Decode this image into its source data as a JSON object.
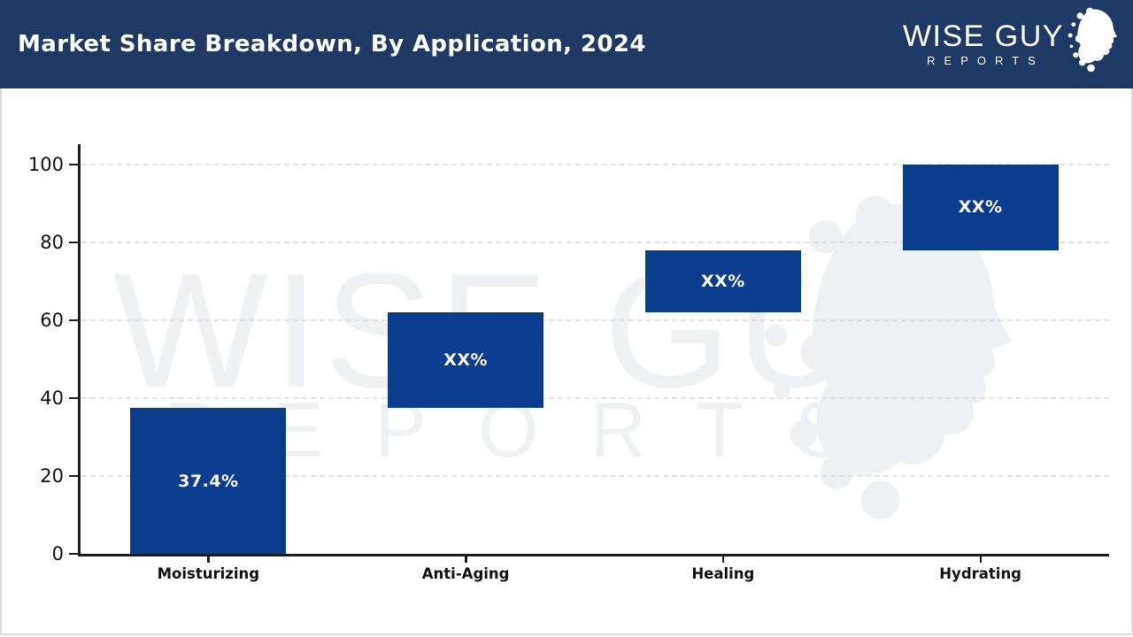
{
  "header": {
    "title": "Market Share Breakdown, By Application, 2024",
    "background_color": "#203864",
    "logo": {
      "wordmark": "WISE GUY",
      "subtext": "REPORTS"
    }
  },
  "watermark": {
    "line1": "WISE GUY",
    "line2": "REPORTS"
  },
  "chart_data": {
    "type": "bar",
    "subtype": "waterfall",
    "title": "Market Share Breakdown, By Application, 2024",
    "categories": [
      "Moisturizing",
      "Anti-Aging",
      "Healing",
      "Hydrating"
    ],
    "segments": [
      {
        "category": "Moisturizing",
        "start": 0,
        "end": 37.4,
        "label": "37.4%"
      },
      {
        "category": "Anti-Aging",
        "start": 37.4,
        "end": 62,
        "label": "XX%"
      },
      {
        "category": "Healing",
        "start": 62,
        "end": 78,
        "label": "XX%"
      },
      {
        "category": "Hydrating",
        "start": 78,
        "end": 100,
        "label": "XX%"
      }
    ],
    "xlabel": "",
    "ylabel": "",
    "ylim": [
      0,
      105
    ],
    "yticks": [
      0,
      20,
      40,
      60,
      80,
      100
    ],
    "grid": "horizontal-dashed",
    "legend": "none",
    "bar_color": "#0b3d8f",
    "bar_label_color": "#ffffff",
    "axis_color": "#1c1c1c",
    "grid_color": "#e2e2e2",
    "tick_label_color": "#111111"
  }
}
